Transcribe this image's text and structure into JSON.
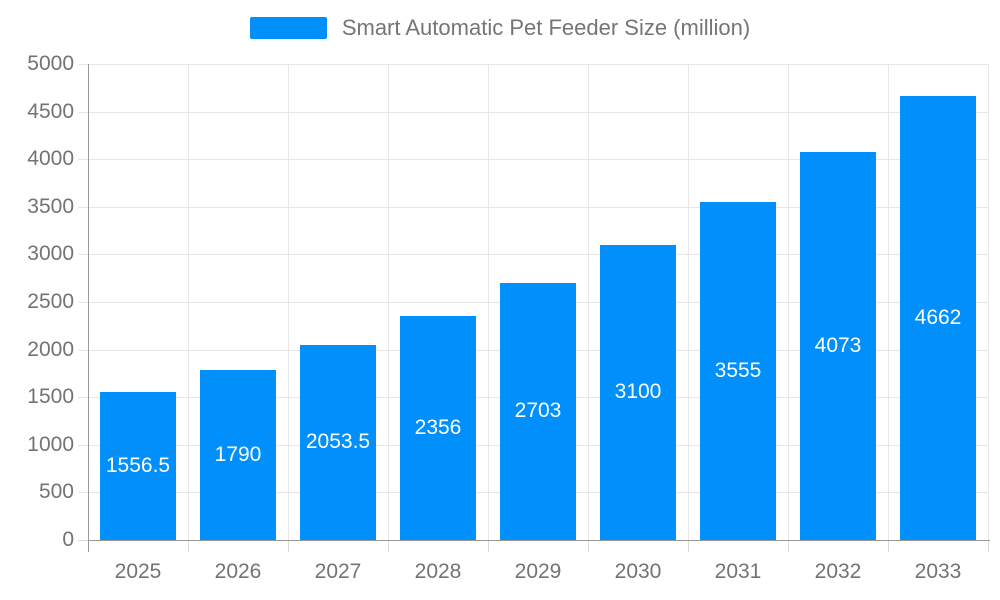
{
  "legend": {
    "label": "Smart Automatic Pet Feeder Size (million)",
    "swatch_color": "#008FFB"
  },
  "chart_data": {
    "type": "bar",
    "title": "Smart Automatic Pet Feeder Size (million)",
    "categories": [
      "2025",
      "2026",
      "2027",
      "2028",
      "2029",
      "2030",
      "2031",
      "2032",
      "2033"
    ],
    "values": [
      1556.5,
      1790,
      2053.5,
      2356,
      2703,
      3100,
      3555,
      4073,
      4662
    ],
    "xlabel": "",
    "ylabel": "",
    "ylim": [
      0,
      5000
    ],
    "yticks": [
      0,
      500,
      1000,
      1500,
      2000,
      2500,
      3000,
      3500,
      4000,
      4500,
      5000
    ],
    "grid": true,
    "legend_position": "top",
    "bar_color": "#008FFB",
    "data_label_color": "#ffffff",
    "axis_label_color": "#737373",
    "grid_color": "#e7e7e7",
    "tick_color": "#d9d9d9",
    "axis_line_color": "#999999"
  }
}
